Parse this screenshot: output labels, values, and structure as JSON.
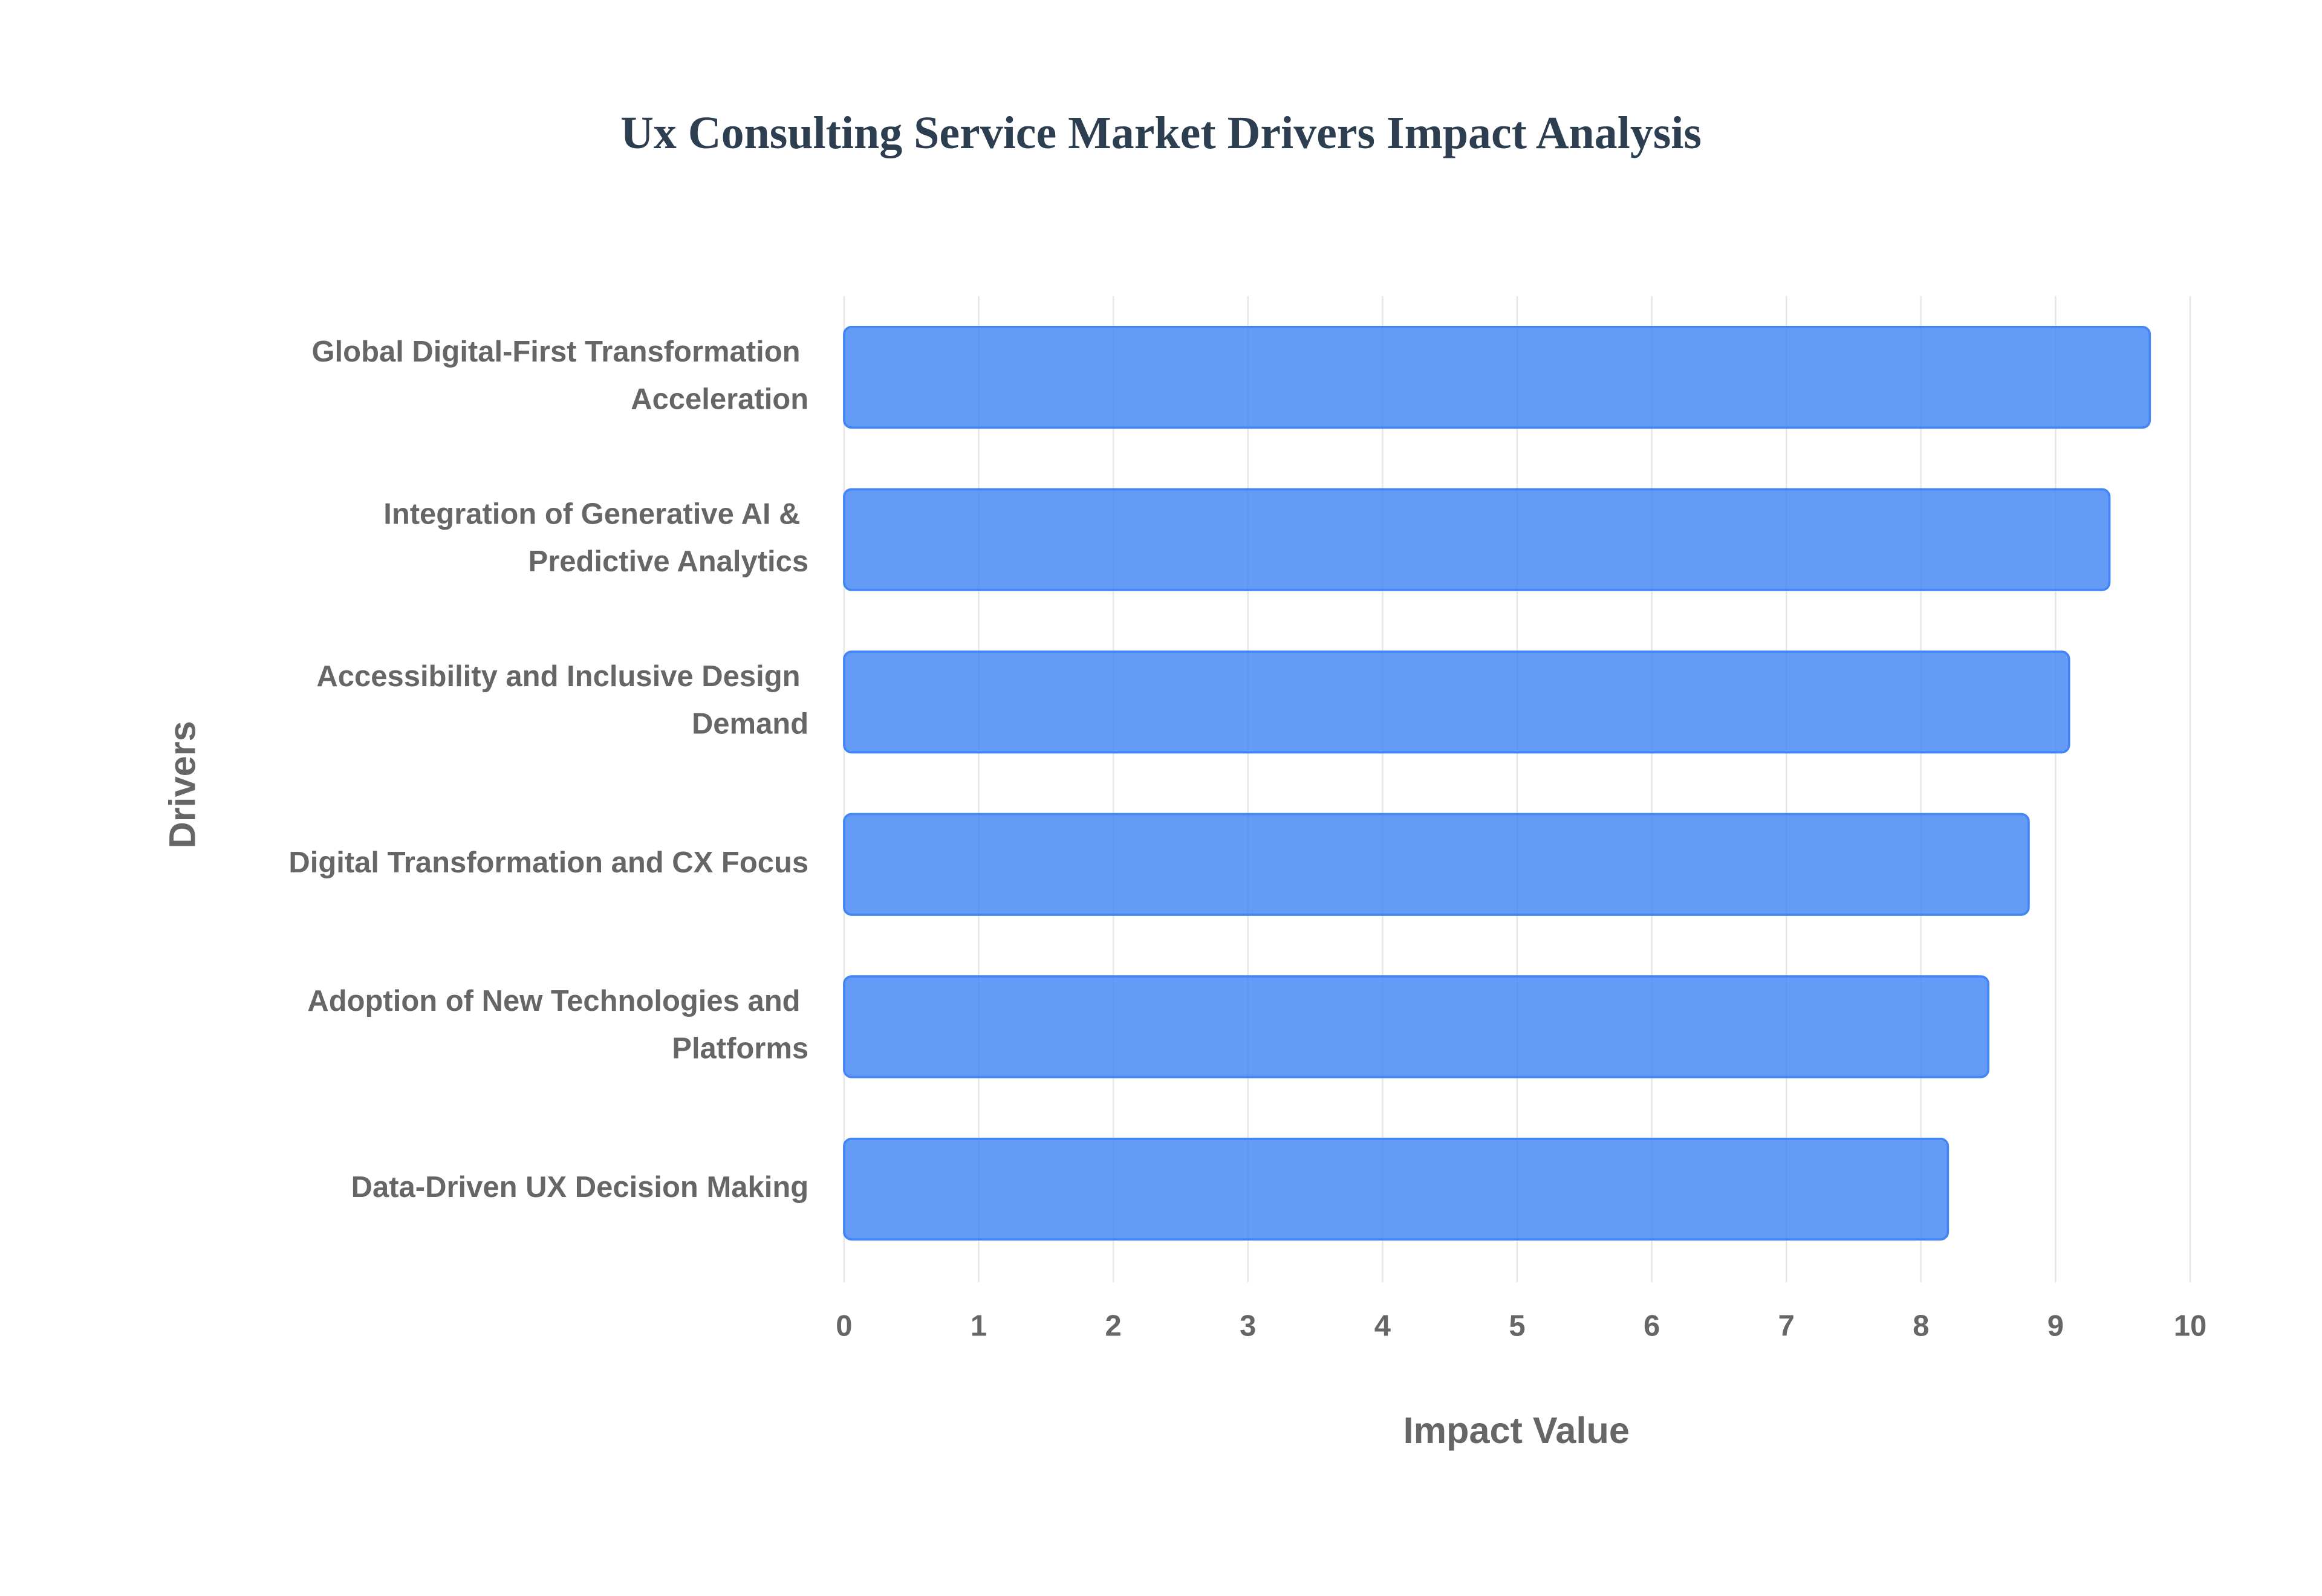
{
  "chart_data": {
    "type": "bar",
    "orientation": "horizontal",
    "title": "Ux Consulting Service Market Drivers Impact Analysis",
    "x_label": "Impact Value",
    "y_label": "Drivers",
    "categories": [
      "Global Digital-First Transformation Acceleration",
      "Integration of Generative AI & Predictive Analytics",
      "Accessibility and Inclusive Design Demand",
      "Digital Transformation and CX Focus",
      "Adoption of New Technologies and Platforms",
      "Data-Driven UX Decision Making"
    ],
    "values": [
      9.7,
      9.4,
      9.1,
      8.8,
      8.5,
      8.2
    ],
    "color": "#4285f4",
    "xlim": [
      0,
      10
    ],
    "xticks": [
      0,
      1,
      2,
      3,
      4,
      5,
      6,
      7,
      8,
      9,
      10
    ],
    "grid": true
  }
}
